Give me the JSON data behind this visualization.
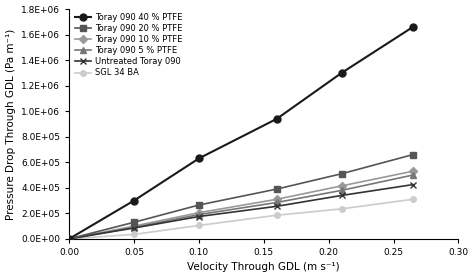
{
  "series": [
    {
      "label": "Toray 090 40 % PTFE",
      "x": [
        0.0,
        0.05,
        0.1,
        0.16,
        0.21,
        0.265
      ],
      "y": [
        0,
        300000,
        630000,
        940000,
        1300000,
        1660000
      ],
      "color": "#1a1a1a",
      "marker": "o",
      "markersize": 5,
      "linewidth": 1.5,
      "zorder": 5
    },
    {
      "label": "Toray 090 20 % PTFE",
      "x": [
        0.0,
        0.05,
        0.1,
        0.16,
        0.21,
        0.265
      ],
      "y": [
        0,
        130000,
        265000,
        390000,
        510000,
        660000
      ],
      "color": "#555555",
      "marker": "s",
      "markersize": 4,
      "linewidth": 1.2,
      "zorder": 4
    },
    {
      "label": "Toray 090 10 % PTFE",
      "x": [
        0.0,
        0.05,
        0.1,
        0.16,
        0.21,
        0.265
      ],
      "y": [
        0,
        100000,
        205000,
        310000,
        415000,
        530000
      ],
      "color": "#999999",
      "marker": "D",
      "markersize": 4,
      "linewidth": 1.2,
      "zorder": 3
    },
    {
      "label": "Toray 090 5 % PTFE",
      "x": [
        0.0,
        0.05,
        0.1,
        0.16,
        0.21,
        0.265
      ],
      "y": [
        0,
        90000,
        190000,
        285000,
        380000,
        500000
      ],
      "color": "#777777",
      "marker": "^",
      "markersize": 4,
      "linewidth": 1.2,
      "zorder": 3
    },
    {
      "label": "Untreated Toray 090",
      "x": [
        0.0,
        0.05,
        0.1,
        0.16,
        0.21,
        0.265
      ],
      "y": [
        0,
        85000,
        175000,
        255000,
        340000,
        425000
      ],
      "color": "#333333",
      "marker": "x",
      "markersize": 5,
      "linewidth": 1.2,
      "zorder": 3
    },
    {
      "label": "SGL 34 BA",
      "x": [
        0.0,
        0.05,
        0.1,
        0.16,
        0.21,
        0.265
      ],
      "y": [
        0,
        35000,
        105000,
        185000,
        235000,
        310000
      ],
      "color": "#cccccc",
      "marker": "o",
      "markersize": 4,
      "linewidth": 1.2,
      "zorder": 2
    }
  ],
  "xlabel": "Velocity Through GDL (m s⁻¹)",
  "ylabel": "Pressure Drop Through GDL (Pa m⁻¹)",
  "xlim": [
    0.0,
    0.3
  ],
  "ylim": [
    0,
    1800000.0
  ],
  "xticks": [
    0.0,
    0.05,
    0.1,
    0.15,
    0.2,
    0.25,
    0.3
  ],
  "yticks": [
    0,
    200000.0,
    400000.0,
    600000.0,
    800000.0,
    1000000.0,
    1200000.0,
    1400000.0,
    1600000.0,
    1800000.0
  ],
  "ytick_labels": [
    "0.0E+00",
    "2.0E+05",
    "4.0E+05",
    "6.0E+05",
    "8.0E+05",
    "1.0E+06",
    "1.2E+06",
    "1.4E+06",
    "1.6E+06",
    "1.8E+06"
  ],
  "legend_fontsize": 6.0,
  "axis_label_fontsize": 7.5,
  "tick_fontsize": 6.5,
  "background_color": "#ffffff"
}
